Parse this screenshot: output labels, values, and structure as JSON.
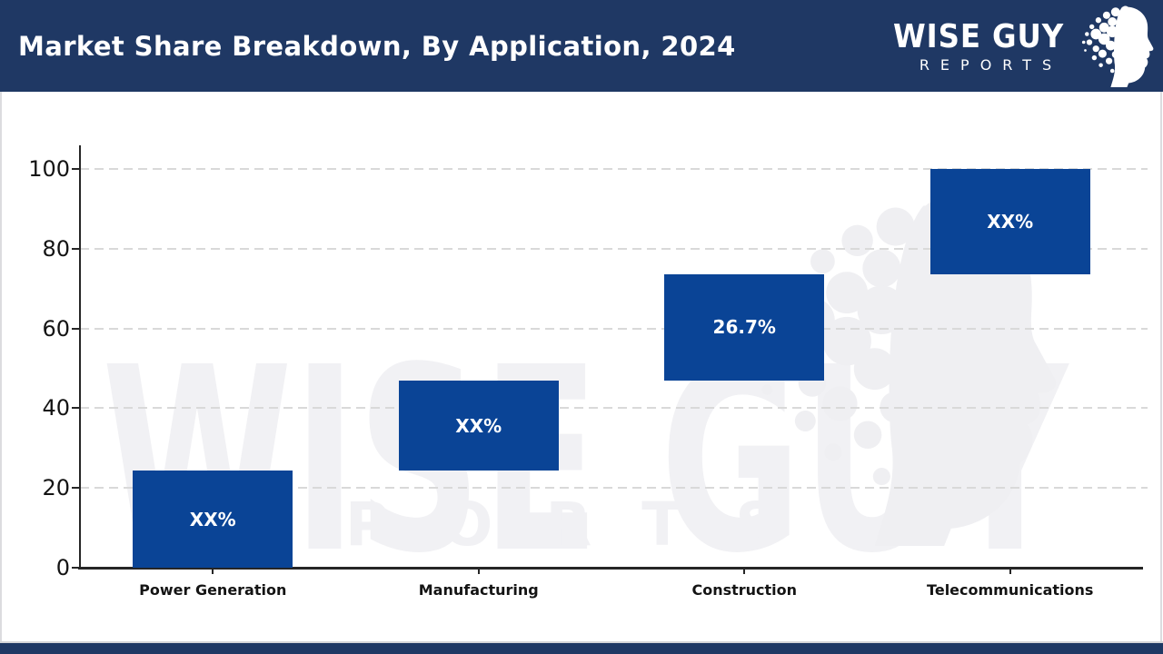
{
  "header": {
    "title": "Market Share Breakdown, By Application, 2024",
    "logo": {
      "line1": "WISE GUY",
      "line2": "REPORTS"
    }
  },
  "watermark": {
    "line1": "WISE GUY",
    "line2": "REPORTS"
  },
  "colors": {
    "header_bg": "#1f3864",
    "footer_bg": "#1f3864",
    "bar": "#0a4496",
    "axis": "#262626",
    "grid": "#d9d9d9",
    "tick_text": "#141414",
    "bar_label_text": "#ffffff",
    "title_text": "#ffffff",
    "watermark": "#f1f1f4"
  },
  "chart_data": {
    "type": "bar",
    "variant": "floating-stacked-segments",
    "title": "Market Share Breakdown, By Application, 2024",
    "xlabel": "",
    "ylabel": "",
    "categories": [
      "Power Generation",
      "Manufacturing",
      "Construction",
      "Telecommunications"
    ],
    "bars": [
      {
        "category": "Power Generation",
        "start": 0,
        "end": 24.3,
        "label": "XX%"
      },
      {
        "category": "Manufacturing",
        "start": 24.3,
        "end": 46.9,
        "label": "XX%"
      },
      {
        "category": "Construction",
        "start": 46.9,
        "end": 73.6,
        "label": "26.7%"
      },
      {
        "category": "Telecommunications",
        "start": 73.6,
        "end": 100,
        "label": "XX%"
      }
    ],
    "yticks": [
      0,
      20,
      40,
      60,
      80,
      100
    ],
    "ylim": [
      0,
      106
    ],
    "grid": "horizontal-dashed",
    "legend": "none"
  }
}
